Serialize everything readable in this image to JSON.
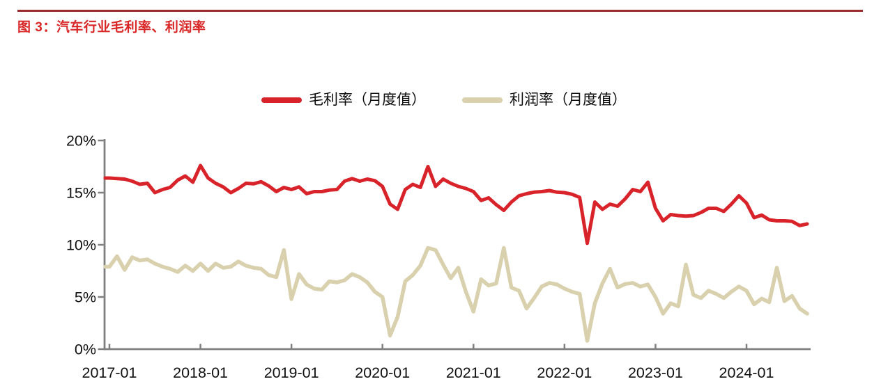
{
  "header": {
    "title": "图 3：汽车行业毛利率、利润率"
  },
  "colors": {
    "title_red": "#d92626",
    "top_rule_red": "#9c2b2b",
    "line_red": "#d9232a",
    "line_beige": "#d9d0ae",
    "axis_gray": "#7f7f7f",
    "label_black": "#111111"
  },
  "chart_data": {
    "type": "line",
    "title": "图 3：汽车行业毛利率、利润率",
    "xlabel": "",
    "ylabel": "",
    "ylim": [
      0,
      20
    ],
    "grid": false,
    "legend_position": "top",
    "y_ticks": [
      0,
      5,
      10,
      15,
      20
    ],
    "y_tick_labels": [
      "0%",
      "5%",
      "10%",
      "15%",
      "20%"
    ],
    "x_tick_labels": [
      "2017-01",
      "2018-01",
      "2019-01",
      "2020-01",
      "2021-01",
      "2022-01",
      "2023-01",
      "2024-01"
    ],
    "x_tick_indices": [
      0,
      12,
      24,
      36,
      48,
      60,
      72,
      84
    ],
    "x": [
      "2017-01",
      "2017-02",
      "2017-03",
      "2017-04",
      "2017-05",
      "2017-06",
      "2017-07",
      "2017-08",
      "2017-09",
      "2017-10",
      "2017-11",
      "2017-12",
      "2018-01",
      "2018-02",
      "2018-03",
      "2018-04",
      "2018-05",
      "2018-06",
      "2018-07",
      "2018-08",
      "2018-09",
      "2018-10",
      "2018-11",
      "2018-12",
      "2019-01",
      "2019-02",
      "2019-03",
      "2019-04",
      "2019-05",
      "2019-06",
      "2019-07",
      "2019-08",
      "2019-09",
      "2019-10",
      "2019-11",
      "2019-12",
      "2020-01",
      "2020-02",
      "2020-03",
      "2020-04",
      "2020-05",
      "2020-06",
      "2020-07",
      "2020-08",
      "2020-09",
      "2020-10",
      "2020-11",
      "2020-12",
      "2021-01",
      "2021-02",
      "2021-03",
      "2021-04",
      "2021-05",
      "2021-06",
      "2021-07",
      "2021-08",
      "2021-09",
      "2021-10",
      "2021-11",
      "2021-12",
      "2022-01",
      "2022-02",
      "2022-03",
      "2022-04",
      "2022-05",
      "2022-06",
      "2022-07",
      "2022-08",
      "2022-09",
      "2022-10",
      "2022-11",
      "2022-12",
      "2023-01",
      "2023-02",
      "2023-03",
      "2023-04",
      "2023-05",
      "2023-06",
      "2023-07",
      "2023-08",
      "2023-09",
      "2023-10",
      "2023-11",
      "2023-12",
      "2024-01",
      "2024-02",
      "2024-03",
      "2024-04",
      "2024-05",
      "2024-06",
      "2024-07",
      "2024-08",
      "2024-09"
    ],
    "series": [
      {
        "name": "毛利率（月度值）",
        "color": "#d9232a",
        "stroke_width": 5,
        "values": [
          16.4,
          16.35,
          16.3,
          16.1,
          15.8,
          15.9,
          15.0,
          15.3,
          15.5,
          16.2,
          16.6,
          16.0,
          17.6,
          16.4,
          15.9,
          15.55,
          15.0,
          15.4,
          15.9,
          15.85,
          16.05,
          15.65,
          15.1,
          15.5,
          15.3,
          15.55,
          14.9,
          15.1,
          15.1,
          15.25,
          15.3,
          16.1,
          16.35,
          16.1,
          16.3,
          16.15,
          15.6,
          13.9,
          13.4,
          15.3,
          15.8,
          15.5,
          17.5,
          15.6,
          16.3,
          15.9,
          15.6,
          15.4,
          15.1,
          14.25,
          14.5,
          13.85,
          13.3,
          14.1,
          14.7,
          14.9,
          15.05,
          15.1,
          15.2,
          15.05,
          15.0,
          14.85,
          14.55,
          10.15,
          14.1,
          13.4,
          13.9,
          13.7,
          14.4,
          15.3,
          15.1,
          16.0,
          13.5,
          12.3,
          12.9,
          12.8,
          12.75,
          12.8,
          13.1,
          13.5,
          13.5,
          13.2,
          13.9,
          14.7,
          14.0,
          12.6,
          12.85,
          12.4,
          12.3,
          12.3,
          12.25,
          11.85,
          12.0
        ]
      },
      {
        "name": "利润率（月度值）",
        "color": "#d9d0ae",
        "stroke_width": 5.5,
        "values": [
          7.9,
          8.9,
          7.6,
          8.8,
          8.5,
          8.6,
          8.2,
          7.9,
          7.7,
          7.4,
          8.0,
          7.5,
          8.2,
          7.5,
          8.2,
          7.8,
          7.9,
          8.4,
          8.0,
          7.8,
          7.7,
          7.1,
          6.9,
          9.5,
          4.8,
          7.2,
          6.2,
          5.8,
          5.7,
          6.5,
          6.4,
          6.6,
          7.2,
          6.9,
          6.4,
          5.5,
          5.0,
          1.3,
          3.1,
          6.5,
          7.1,
          8.0,
          9.7,
          9.5,
          8.1,
          6.8,
          7.8,
          5.5,
          3.6,
          6.7,
          6.1,
          6.3,
          9.7,
          5.9,
          5.6,
          3.9,
          4.9,
          6.0,
          6.35,
          6.2,
          5.8,
          5.5,
          5.3,
          0.8,
          4.4,
          6.3,
          7.7,
          5.9,
          6.25,
          6.35,
          6.0,
          6.2,
          5.0,
          3.4,
          4.4,
          4.1,
          8.1,
          5.2,
          4.9,
          5.6,
          5.3,
          4.9,
          5.5,
          6.0,
          5.6,
          4.3,
          4.85,
          4.5,
          7.8,
          4.6,
          5.1,
          3.9,
          3.4
        ]
      }
    ]
  }
}
